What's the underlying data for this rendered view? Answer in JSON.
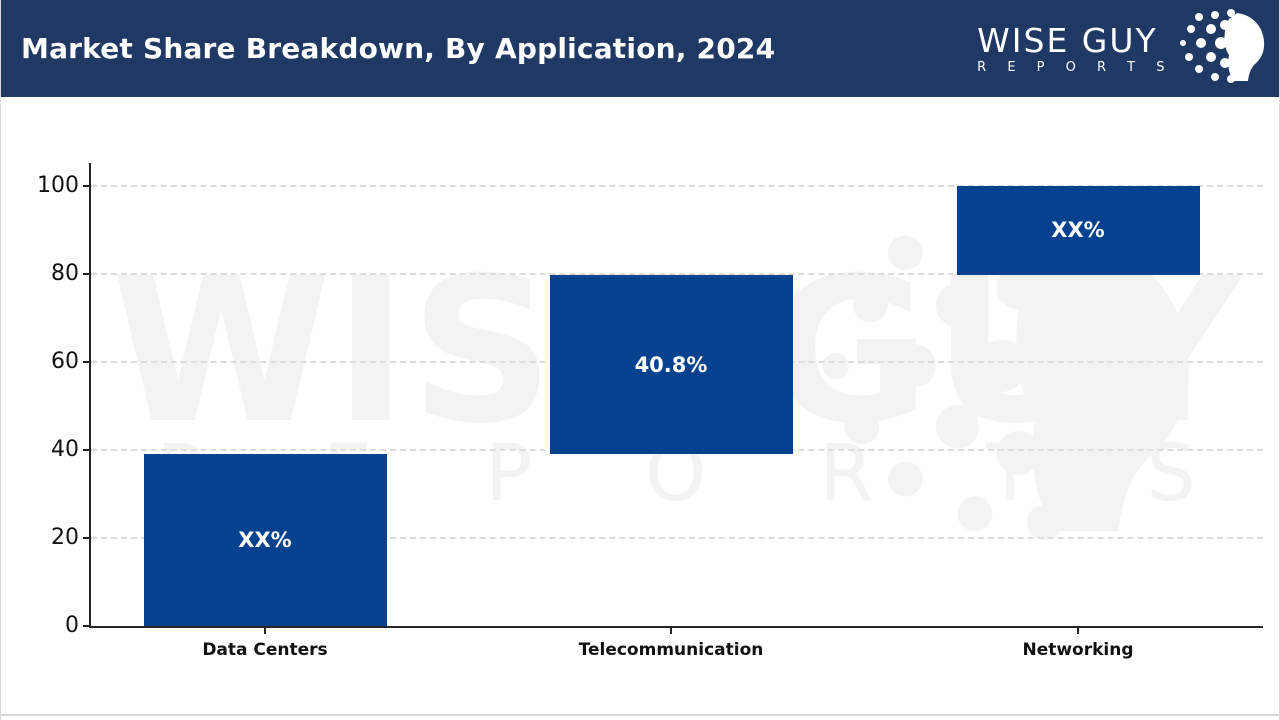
{
  "header": {
    "title": "Market Share Breakdown, By Application, 2024",
    "logo": {
      "line1": "WISE GUY",
      "line2": "R E P O R T S"
    }
  },
  "watermark": {
    "line1": "WISE GUY",
    "line2": "R E P O R T S"
  },
  "chart_data": {
    "type": "bar",
    "variant": "waterfall",
    "title": "Market Share Breakdown, By Application, 2024",
    "categories": [
      "Data Centers",
      "Telecommunication",
      "Networking"
    ],
    "segments": [
      {
        "category": "Data Centers",
        "start": 0,
        "end": 39,
        "label": "XX%"
      },
      {
        "category": "Telecommunication",
        "start": 39,
        "end": 79.8,
        "label": "40.8%"
      },
      {
        "category": "Networking",
        "start": 79.8,
        "end": 100,
        "label": "XX%"
      }
    ],
    "ylim": [
      0,
      100
    ],
    "yticks": [
      0,
      20,
      40,
      60,
      80,
      100
    ],
    "xlabel": "",
    "ylabel": "",
    "grid": "horizontal-dashed",
    "legend": "none",
    "bar_color": "#04428f",
    "bar_label_color": "#ffffff"
  },
  "colors": {
    "header_bg": "#1f3864",
    "bar_blue": "#04428f",
    "gridline": "#dcdcdc",
    "axis": "#262626",
    "watermark": "#f3f3f3",
    "title_text": "#ffffff"
  }
}
